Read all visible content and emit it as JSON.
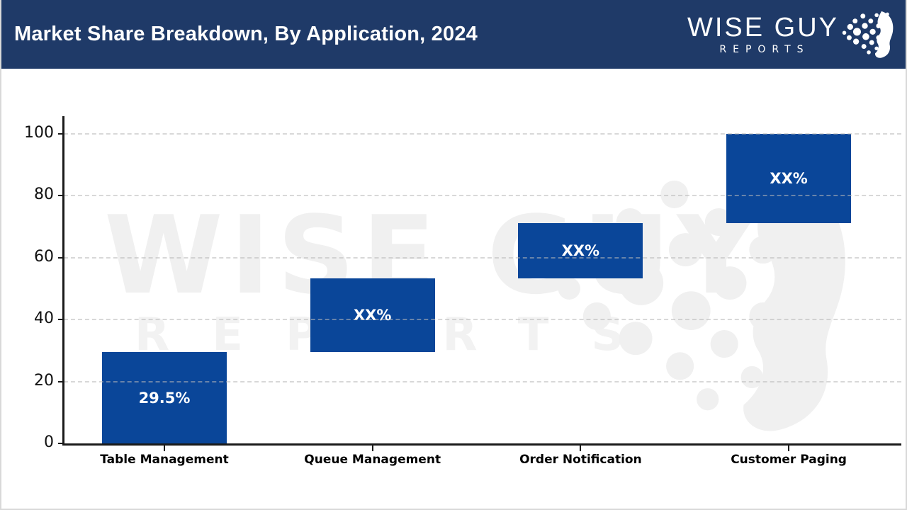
{
  "header": {
    "title": "Market Share Breakdown, By Application, 2024",
    "logo": {
      "wordmark": "WISE GUY",
      "subtext": "REPORTS",
      "icon": "face-profile-dots-icon"
    }
  },
  "watermark": {
    "line1": "WISE GUY",
    "line2": "REPORTS",
    "icon": "face-profile-dots-icon"
  },
  "colors": {
    "header_bg": "#1f3a68",
    "bar": "#0a4699",
    "bar_label": "#ffffff",
    "gridline": "#d9d9d9",
    "axis": "#1a1a1a",
    "watermark": "#f0f0f0"
  },
  "chart_data": {
    "type": "bar",
    "subtype": "waterfall-floating-bars",
    "title": "Market Share Breakdown, By Application, 2024",
    "xlabel": "",
    "ylabel": "",
    "ylim": [
      0,
      100
    ],
    "yticks": [
      0,
      20,
      40,
      60,
      80,
      100
    ],
    "grid": "horizontal-dashed",
    "legend": "none",
    "categories": [
      "Table Management",
      "Queue Management",
      "Order Notification",
      "Customer Paging"
    ],
    "segments": [
      {
        "category": "Table Management",
        "start": 0,
        "end": 29.5,
        "label": "29.5%"
      },
      {
        "category": "Queue Management",
        "start": 29.5,
        "end": 53.3,
        "label": "XX%"
      },
      {
        "category": "Order Notification",
        "start": 53.3,
        "end": 71.2,
        "label": "XX%"
      },
      {
        "category": "Customer Paging",
        "start": 71.2,
        "end": 100,
        "label": "XX%"
      }
    ]
  }
}
